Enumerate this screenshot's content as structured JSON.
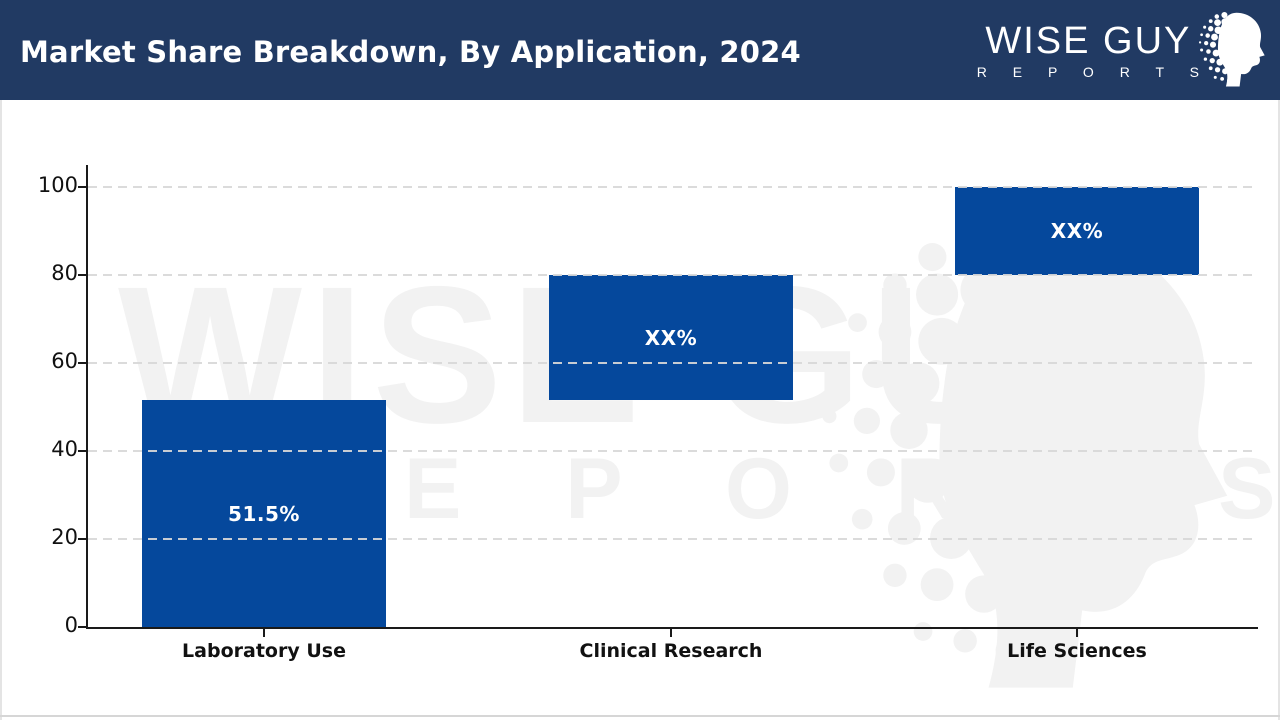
{
  "header": {
    "bg": "#213a63",
    "title": "Market Share Breakdown, By Application, 2024",
    "logo": {
      "wordmark": "WISE GUY",
      "sub": "R E P O R T S"
    }
  },
  "watermark": {
    "wordmark": "WISE GUY",
    "sub": "R E P O R T S"
  },
  "chart_data": {
    "type": "bar",
    "variant": "waterfall",
    "title": "Market Share Breakdown, By Application, 2024",
    "categories": [
      "Laboratory Use",
      "Clinical Research",
      "Life Sciences"
    ],
    "bars": [
      {
        "category": "Laboratory Use",
        "start": 0,
        "end": 51.5,
        "label": "51.5%"
      },
      {
        "category": "Clinical Research",
        "start": 51.5,
        "end": 80,
        "label": "XX%"
      },
      {
        "category": "Life Sciences",
        "start": 80,
        "end": 100,
        "label": "XX%"
      }
    ],
    "yticks": [
      0,
      20,
      40,
      60,
      80,
      100
    ],
    "ylim": [
      0,
      100
    ],
    "grid": {
      "axis": "y",
      "style": "dashed",
      "color": "#d9d9d9"
    },
    "legend": "none",
    "bar_color": "#05489c",
    "bar_label_color": "#ffffff",
    "axis_color": "#1a1a1a"
  }
}
